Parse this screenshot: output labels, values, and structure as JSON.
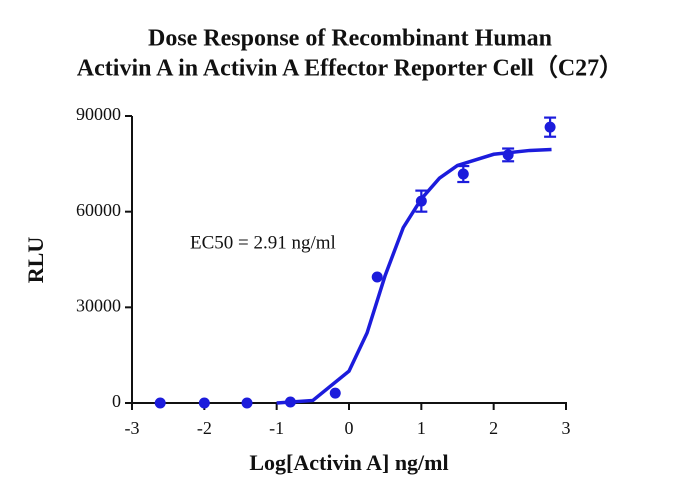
{
  "chart_data": {
    "type": "scatter",
    "title": [
      "Dose Response of Recombinant Human",
      "Activin A in Activin A Effector Reporter Cell（C27）"
    ],
    "x_label": "Log[Activin A] ng/ml",
    "y_label": "RLU",
    "annotations": [
      "EC50 = 2.91 ng/ml"
    ],
    "xlim": [
      -3,
      3
    ],
    "xticks": [
      -3,
      -2,
      -1,
      0,
      1,
      2,
      3
    ],
    "ylim": [
      0,
      90000
    ],
    "yticks": [
      0,
      30000,
      60000,
      90000
    ],
    "series": [
      {
        "type": "scatter",
        "color": "#1c1cdc",
        "x": [
          -2.61,
          -2.0,
          -1.41,
          -0.81,
          -0.19,
          0.39,
          1.0,
          1.58,
          2.2,
          2.78
        ],
        "values": [
          0,
          0,
          0,
          300,
          3100,
          39500,
          63300,
          71800,
          77800,
          86500
        ],
        "errors": [
          null,
          null,
          null,
          null,
          null,
          null,
          3300,
          2500,
          2000,
          3000
        ]
      },
      {
        "type": "line",
        "color": "#1c1cdc",
        "x": [
          -1.0,
          -0.5,
          0,
          0.25,
          0.5,
          0.75,
          1.0,
          1.25,
          1.5,
          2.0,
          2.5,
          2.8
        ],
        "values": [
          0,
          800,
          10000,
          22000,
          40000,
          55000,
          64000,
          70500,
          74500,
          78000,
          79200,
          79500
        ]
      }
    ]
  }
}
